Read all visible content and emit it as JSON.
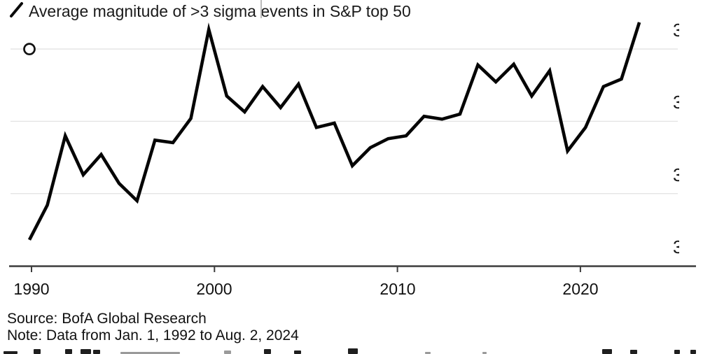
{
  "chart": {
    "title": "Average magnitude of >3 sigma events in S&P top 50",
    "legend_marker": "diagonal-line-slash",
    "footer": {
      "source": "Source: BofA Global Research",
      "note": "Note: Data from Jan. 1, 1992 to Aug. 2, 2024"
    }
  },
  "chart_data": {
    "type": "line",
    "title": "Average magnitude of >3 sigma events in S&P top 50",
    "x": [
      1990,
      1991,
      1992,
      1993,
      1994,
      1995,
      1996,
      1997,
      1998,
      1999,
      2000,
      2001,
      2002,
      2003,
      2004,
      2005,
      2006,
      2007,
      2008,
      2009,
      2010,
      2011,
      2012,
      2013,
      2014,
      2015,
      2016,
      2017,
      2018,
      2019,
      2020,
      2021,
      2022,
      2023,
      2024
    ],
    "values": [
      3.272,
      3.368,
      3.56,
      3.452,
      3.508,
      3.428,
      3.38,
      3.548,
      3.541,
      3.608,
      3.854,
      3.67,
      3.626,
      3.696,
      3.638,
      3.703,
      3.583,
      3.595,
      3.477,
      3.527,
      3.552,
      3.56,
      3.614,
      3.606,
      3.62,
      3.756,
      3.709,
      3.758,
      3.67,
      3.74,
      3.518,
      3.583,
      3.696,
      3.717,
      3.874
    ],
    "x_ticks": [
      1990,
      2000,
      2010,
      2020
    ],
    "y_axis": {
      "side": "right",
      "baseline_value": 3.2,
      "gridline_values": [
        3.4,
        3.6,
        3.8
      ],
      "labels_cut_off": true,
      "tick_label_visible_fragment": "3"
    },
    "y_tick_labels_partial": [
      "3",
      "3",
      "3",
      "3"
    ],
    "ylim": [
      3.2,
      3.94
    ],
    "grid": "horizontal",
    "legend_position": "top-left",
    "marker": {
      "shape": "open-circle",
      "year": 1990,
      "value": 3.8
    },
    "colors": {
      "line": "#050505",
      "grid": "#e4e4e4",
      "axis": "#3c3c3c",
      "text": "#111111",
      "title": "#1a1a1a",
      "background": "#ffffff"
    }
  },
  "artifacts": {
    "caret_between_words": "sigma | events",
    "bottom_text_fragments": [
      {
        "x": 5,
        "w": 20,
        "h": 4,
        "tone": "dark"
      },
      {
        "x": 48,
        "w": 10,
        "h": 7,
        "tone": "dark"
      },
      {
        "x": 93,
        "w": 10,
        "h": 7,
        "tone": "dark"
      },
      {
        "x": 115,
        "w": 15,
        "h": 7,
        "tone": "dark"
      },
      {
        "x": 133,
        "w": 10,
        "h": 6,
        "tone": "dark"
      },
      {
        "x": 172,
        "w": 85,
        "h": 3,
        "tone": "light"
      },
      {
        "x": 320,
        "w": 10,
        "h": 5,
        "tone": "light"
      },
      {
        "x": 377,
        "w": 10,
        "h": 7,
        "tone": "dark"
      },
      {
        "x": 420,
        "w": 10,
        "h": 5,
        "tone": "dark"
      },
      {
        "x": 497,
        "w": 14,
        "h": 8,
        "tone": "dark"
      },
      {
        "x": 607,
        "w": 8,
        "h": 3,
        "tone": "light"
      },
      {
        "x": 689,
        "w": 6,
        "h": 3,
        "tone": "light"
      },
      {
        "x": 860,
        "w": 14,
        "h": 7,
        "tone": "dark"
      },
      {
        "x": 900,
        "w": 10,
        "h": 6,
        "tone": "dark"
      },
      {
        "x": 963,
        "w": 8,
        "h": 6,
        "tone": "dark"
      },
      {
        "x": 986,
        "w": 8,
        "h": 6,
        "tone": "dark"
      }
    ]
  }
}
